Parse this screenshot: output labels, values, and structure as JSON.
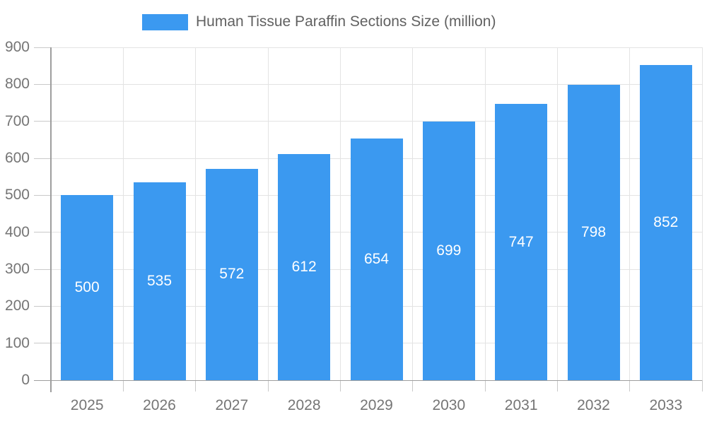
{
  "chart_data": {
    "type": "bar",
    "title": "Human Tissue Paraffin Sections Size (million)",
    "categories": [
      "2025",
      "2026",
      "2027",
      "2028",
      "2029",
      "2030",
      "2031",
      "2032",
      "2033"
    ],
    "values": [
      500,
      535,
      572,
      612,
      654,
      699,
      747,
      798,
      852
    ],
    "xlabel": "",
    "ylabel": "",
    "ylim": [
      0,
      900
    ],
    "ytick_step": 100,
    "grid": true,
    "legend_position": "top",
    "value_labels": "inside-center",
    "colors": {
      "bar": "#3B99F0",
      "value_label": "#ffffff",
      "axis_label": "#757575",
      "legend_label": "#616161",
      "grid_line": "#e3e3e3",
      "axis_line": "#9e9e9e",
      "tick": "#c9c9c9",
      "background": "#ffffff"
    }
  }
}
